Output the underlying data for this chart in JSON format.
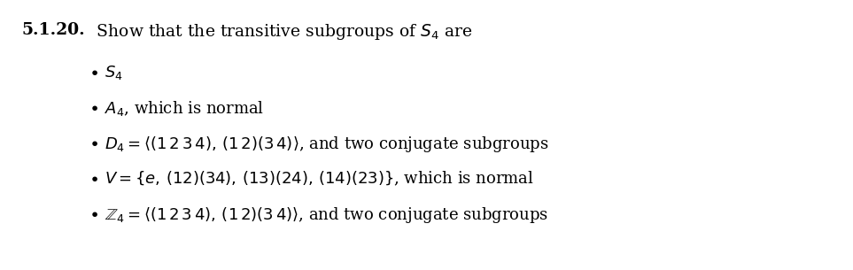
{
  "title_bold": "5.1.20.",
  "title_normal": "  Show that the transitive subgroups of $S_4$ are",
  "bullet_lines": [
    "$S_4$",
    "$A_4$, which is normal",
    "$D_4 = \\langle(1\\,2\\,3\\,4),\\,(1\\,2)(3\\,4)\\rangle$, and two conjugate subgroups",
    "$V = \\{e,\\,(12)(34),\\,(13)(24),\\,(14)(23)\\}$, which is normal",
    "$\\mathbb{Z}_4 = \\langle(1\\,2\\,3\\,4),\\,(1\\,2)(3\\,4)\\rangle$, and two conjugate subgroups"
  ],
  "background_color": "#ffffff",
  "text_color": "#000000",
  "title_fontsize": 13.5,
  "bullet_fontsize": 13.0,
  "fig_width": 9.63,
  "fig_height": 3.05,
  "dpi": 100
}
